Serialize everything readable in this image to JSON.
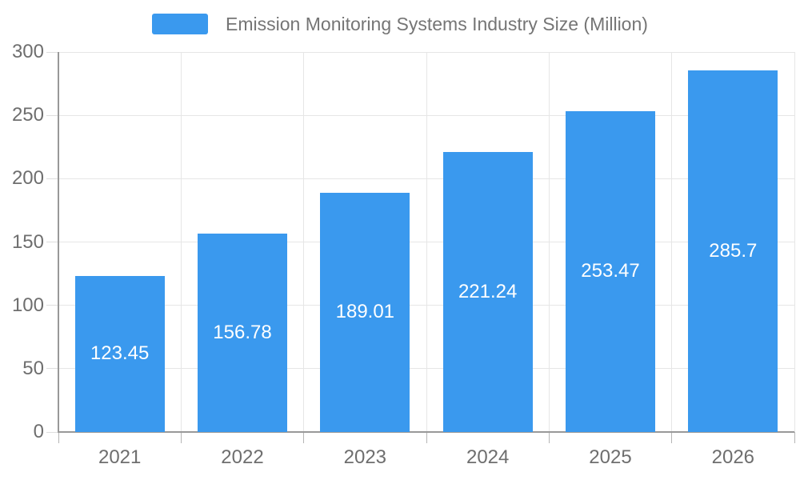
{
  "chart_data": {
    "type": "bar",
    "title": "Emission Monitoring Systems Industry Size (Million)",
    "xlabel": "",
    "ylabel": "",
    "categories": [
      "2021",
      "2022",
      "2023",
      "2024",
      "2025",
      "2026"
    ],
    "values": [
      123.45,
      156.78,
      189.01,
      221.24,
      253.47,
      285.7
    ],
    "value_labels": [
      "123.45",
      "156.78",
      "189.01",
      "221.24",
      "253.47",
      "285.7"
    ],
    "ylim": [
      0,
      300
    ],
    "yticks": [
      0,
      50,
      100,
      150,
      200,
      250,
      300
    ],
    "grid": "on",
    "legend_position": "top-center",
    "colors": {
      "bar": "#3a99ee",
      "grid": "#e6e6e6",
      "axis": "#999999",
      "y_tick_mark": "#dedede",
      "x_tick_mark": "#b5b5b5",
      "tick_text": "#6e6e6e",
      "legend_text": "#757575",
      "value_text": "#ffffff",
      "background": "#ffffff"
    }
  }
}
